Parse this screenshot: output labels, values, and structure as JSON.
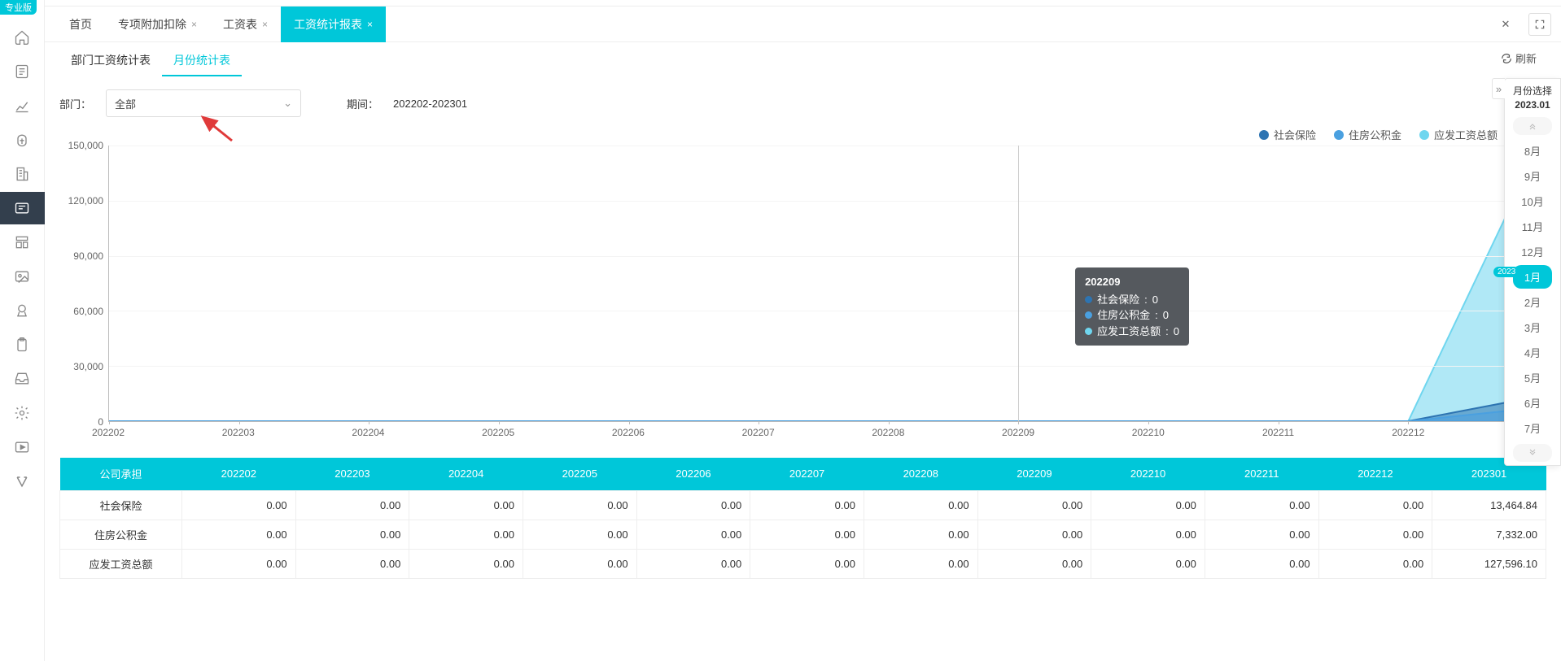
{
  "sidebar": {
    "badge": "专业版"
  },
  "tabs": [
    {
      "label": "首页",
      "closable": false
    },
    {
      "label": "专项附加扣除",
      "closable": true
    },
    {
      "label": "工资表",
      "closable": true
    },
    {
      "label": "工资统计报表",
      "closable": true,
      "active": true
    }
  ],
  "subtabs": [
    {
      "label": "部门工资统计表"
    },
    {
      "label": "月份统计表",
      "active": true
    }
  ],
  "refresh_label": "刷新",
  "filters": {
    "dept_label": "部门：",
    "dept_value": "全部",
    "period_label": "期间：",
    "period_value": "202202-202301"
  },
  "legend": [
    {
      "label": "社会保险",
      "color": "#2d74b2"
    },
    {
      "label": "住房公积金",
      "color": "#4aa0e0"
    },
    {
      "label": "应发工资总额",
      "color": "#6fd6ef"
    }
  ],
  "chart": {
    "type": "area",
    "x_categories": [
      "202202",
      "202203",
      "202204",
      "202205",
      "202206",
      "202207",
      "202208",
      "202209",
      "202210",
      "202211",
      "202212",
      "202301"
    ],
    "ylim": [
      0,
      150000
    ],
    "y_ticks": [
      0,
      30000,
      60000,
      90000,
      120000,
      150000
    ],
    "y_tick_labels": [
      "0",
      "30,000",
      "60,000",
      "90,000",
      "120,000",
      "150,000"
    ],
    "series": [
      {
        "name": "社会保险",
        "color": "#2d74b2",
        "fill": "rgba(45,116,178,0.55)",
        "values": [
          0,
          0,
          0,
          0,
          0,
          0,
          0,
          0,
          0,
          0,
          0,
          13464.84
        ]
      },
      {
        "name": "住房公积金",
        "color": "#4aa0e0",
        "fill": "rgba(74,160,224,0.55)",
        "values": [
          0,
          0,
          0,
          0,
          0,
          0,
          0,
          0,
          0,
          0,
          0,
          7332.0
        ]
      },
      {
        "name": "应发工资总额",
        "color": "#6fd6ef",
        "fill": "rgba(111,214,239,0.55)",
        "values": [
          0,
          0,
          0,
          0,
          0,
          0,
          0,
          0,
          0,
          0,
          0,
          148392.04
        ]
      }
    ],
    "hover_index": 7,
    "tooltip": {
      "title": "202209",
      "rows": [
        {
          "label": "社会保险",
          "value": "0",
          "color": "#2d74b2"
        },
        {
          "label": "住房公积金",
          "value": "0",
          "color": "#4aa0e0"
        },
        {
          "label": "应发工资总额",
          "value": "0",
          "color": "#6fd6ef"
        }
      ]
    },
    "grid_color": "#f4f4f4",
    "axis_color": "#bbbbbb",
    "background_color": "#ffffff"
  },
  "table": {
    "first_header": "公司承担",
    "columns": [
      "202202",
      "202203",
      "202204",
      "202205",
      "202206",
      "202207",
      "202208",
      "202209",
      "202210",
      "202211",
      "202212",
      "202301"
    ],
    "rows": [
      {
        "label": "社会保险",
        "values": [
          "0.00",
          "0.00",
          "0.00",
          "0.00",
          "0.00",
          "0.00",
          "0.00",
          "0.00",
          "0.00",
          "0.00",
          "0.00",
          "13,464.84"
        ]
      },
      {
        "label": "住房公积金",
        "values": [
          "0.00",
          "0.00",
          "0.00",
          "0.00",
          "0.00",
          "0.00",
          "0.00",
          "0.00",
          "0.00",
          "0.00",
          "0.00",
          "7,332.00"
        ]
      },
      {
        "label": "应发工资总额",
        "values": [
          "0.00",
          "0.00",
          "0.00",
          "0.00",
          "0.00",
          "0.00",
          "0.00",
          "0.00",
          "0.00",
          "0.00",
          "0.00",
          "127,596.10"
        ]
      }
    ]
  },
  "month_panel": {
    "title": "月份选择",
    "subtitle": "2023.01",
    "items": [
      "8月",
      "9月",
      "10月",
      "11月",
      "12月",
      "1月",
      "2月",
      "3月",
      "4月",
      "5月",
      "6月",
      "7月"
    ],
    "active_index": 5,
    "year_chip": "2023"
  },
  "colors": {
    "accent": "#00c7d9",
    "annotation_red": "#e03a3a"
  }
}
